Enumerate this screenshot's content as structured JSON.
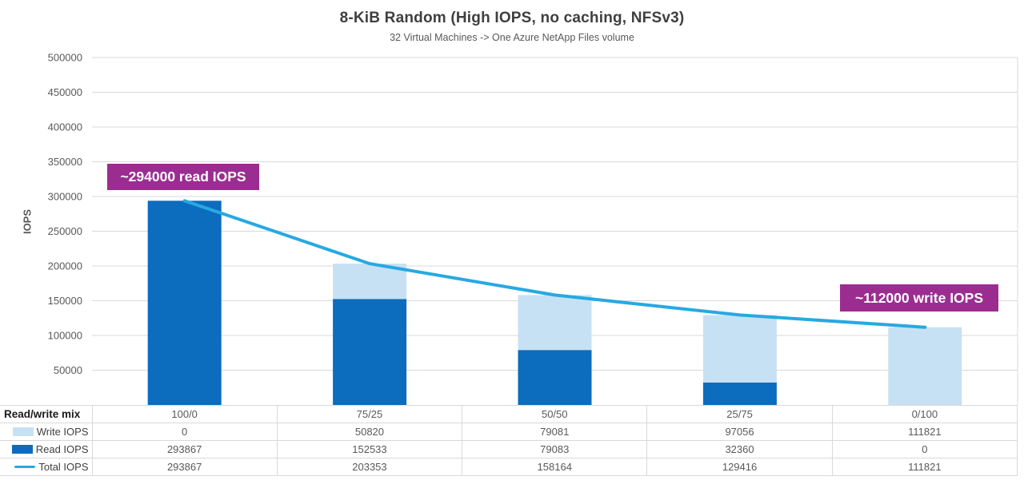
{
  "chart_data": {
    "type": "bar",
    "subtype": "stacked-bar-with-line",
    "title": "8-KiB Random (High IOPS, no caching, NFSv3)",
    "subtitle": "32 Virtual Machines -> One Azure NetApp Files volume",
    "ylabel": "IOPS",
    "xlabel": "",
    "corner_label": "Read/write mix",
    "categories": [
      "100/0",
      "75/25",
      "50/50",
      "25/75",
      "0/100"
    ],
    "series": [
      {
        "name": "Write IOPS",
        "kind": "bar",
        "stack_order": "top",
        "color": "#c7e1f4",
        "values": [
          0,
          50820,
          79081,
          97056,
          111821
        ]
      },
      {
        "name": "Read IOPS",
        "kind": "bar",
        "stack_order": "bottom",
        "color": "#0c6cbe",
        "values": [
          293867,
          152533,
          79083,
          32360,
          0
        ]
      },
      {
        "name": "Total IOPS",
        "kind": "line",
        "color": "#27a9e1",
        "values": [
          293867,
          203353,
          158164,
          129416,
          111821
        ]
      }
    ],
    "ylim": [
      0,
      500000
    ],
    "yticks": [
      50000,
      100000,
      150000,
      200000,
      250000,
      300000,
      350000,
      400000,
      450000,
      500000
    ],
    "grid": "horizontal",
    "gridline_color": "#d9d9d9",
    "axis_text_color": "#595959",
    "legend_position": "table-row-headers",
    "data_table_shown": true
  },
  "annotations": [
    {
      "text": "~294000 read IOPS",
      "bg": "#9b2d91",
      "color": "#ffffff"
    },
    {
      "text": "~112000 write IOPS",
      "bg": "#9b2d91",
      "color": "#ffffff"
    }
  ]
}
